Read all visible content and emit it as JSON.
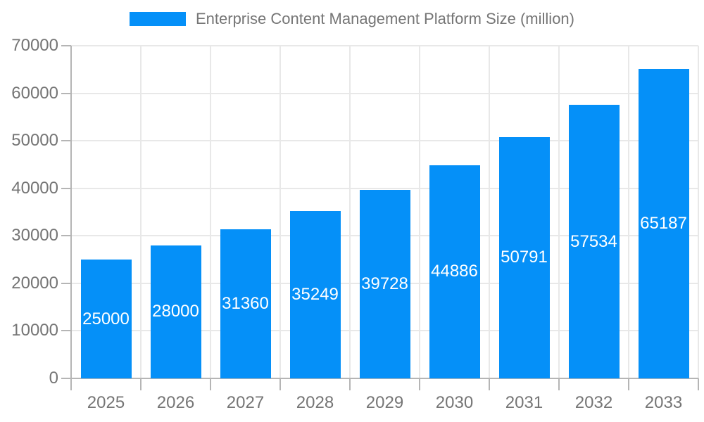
{
  "chart_data": {
    "type": "bar",
    "title": "Enterprise Content Management Platform Size (million)",
    "categories": [
      "2025",
      "2026",
      "2027",
      "2028",
      "2029",
      "2030",
      "2031",
      "2032",
      "2033"
    ],
    "values": [
      25000,
      28000,
      31360,
      35249,
      39728,
      44886,
      50791,
      57534,
      65187
    ],
    "value_labels": [
      "25000",
      "28000",
      "31360",
      "35249",
      "39728",
      "44886",
      "50791",
      "57534",
      "65187"
    ],
    "xlabel": "",
    "ylabel": "",
    "ylim": [
      0,
      70000
    ],
    "ytick_step": 10000,
    "y_tick_labels": [
      "0",
      "10000",
      "20000",
      "30000",
      "40000",
      "50000",
      "60000",
      "70000"
    ],
    "grid": true,
    "legend_position": "top",
    "colors": {
      "bar": "#0590f8",
      "value_label": "#ffffff",
      "axis_text": "#757575",
      "grid_line": "#e8e8e8",
      "axis_line": "#b5b5b5",
      "background": "#ffffff"
    }
  }
}
